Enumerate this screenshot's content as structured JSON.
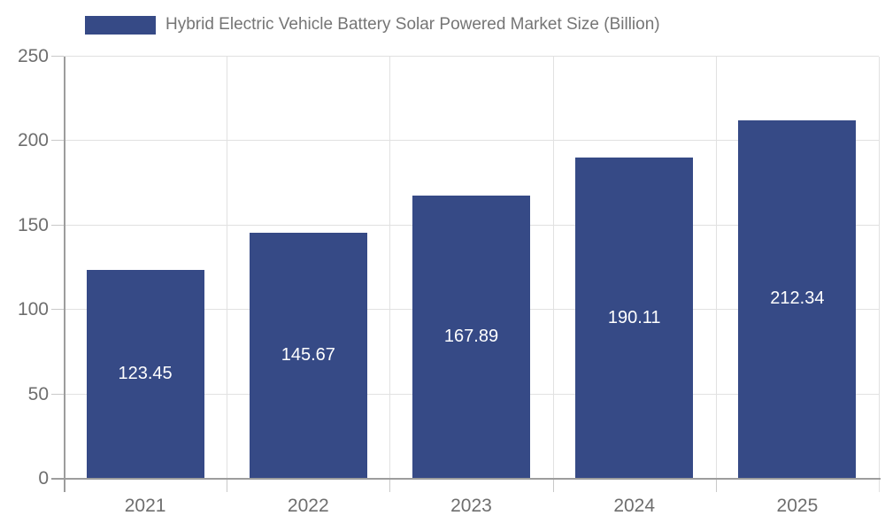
{
  "legend": {
    "label": "Hybrid Electric Vehicle Battery Solar Powered Market Size (Billion)"
  },
  "chart_data": {
    "type": "bar",
    "title": "Hybrid Electric Vehicle Battery Solar Powered Market Size (Billion)",
    "categories": [
      "2021",
      "2022",
      "2023",
      "2024",
      "2025"
    ],
    "values": [
      123.45,
      145.67,
      167.89,
      190.11,
      212.34
    ],
    "value_labels": [
      "123.45",
      "145.67",
      "167.89",
      "190.11",
      "212.34"
    ],
    "xlabel": "",
    "ylabel": "",
    "ylim": [
      0,
      250
    ],
    "yticks": [
      0,
      50,
      100,
      150,
      200,
      250
    ],
    "grid": true,
    "legend_position": "top-left",
    "colors": {
      "bar": "#364A86",
      "grid": "#e1e1e1",
      "axis": "#9d9d9d",
      "minor_tick": "#c9c9c9",
      "tick_text": "#6e6e6e",
      "legend_text": "#757575",
      "value_text": "#ffffff",
      "background": "#ffffff"
    }
  }
}
